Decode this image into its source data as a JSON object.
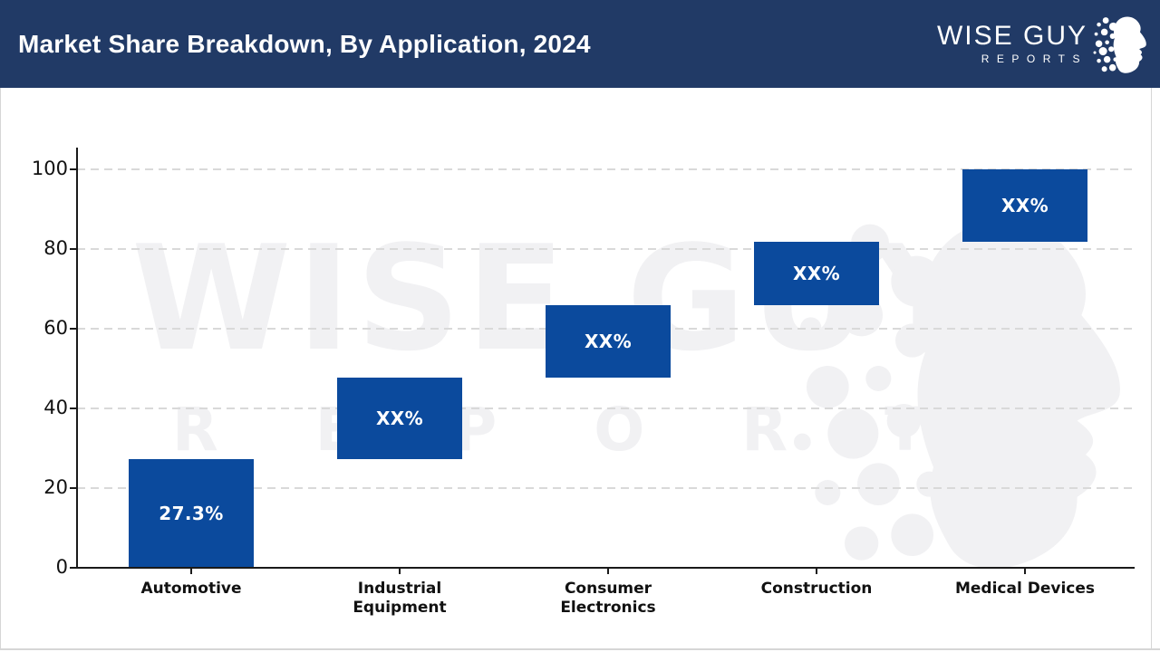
{
  "header": {
    "title": "Market Share Breakdown, By Application, 2024",
    "logo": {
      "line1": "WISE GUY",
      "line2": "REPORTS"
    }
  },
  "watermark": {
    "line1": "WISE GUY",
    "line2": "R E P O R T S"
  },
  "colors": {
    "header_bg": "#213A66",
    "bar": "#0B4A9D",
    "grid": "#D9D9D9",
    "axis": "#1A1A1A",
    "watermark": "#F1F1F3",
    "bar_label": "#FFFFFF",
    "title_text": "#FFFFFF"
  },
  "chart_data": {
    "type": "bar",
    "subtype": "waterfall-floating-bars",
    "title": "Market Share Breakdown, By Application, 2024",
    "categories": [
      "Automotive",
      "Industrial Equipment",
      "Consumer Electronics",
      "Construction",
      "Medical Devices"
    ],
    "category_lines": [
      [
        "Automotive"
      ],
      [
        "Industrial",
        "Equipment"
      ],
      [
        "Consumer",
        "Electronics"
      ],
      [
        "Construction"
      ],
      [
        "Medical Devices"
      ]
    ],
    "series": [
      {
        "name": "Market share (%)",
        "segments": [
          {
            "category": "Automotive",
            "from": 0,
            "to": 27.3
          },
          {
            "category": "Industrial Equipment",
            "from": 27.3,
            "to": 47.7
          },
          {
            "category": "Consumer Electronics",
            "from": 47.7,
            "to": 66.0
          },
          {
            "category": "Construction",
            "from": 66.0,
            "to": 81.8
          },
          {
            "category": "Medical Devices",
            "from": 81.8,
            "to": 100
          }
        ]
      }
    ],
    "bar_labels": [
      "27.3%",
      "XX%",
      "XX%",
      "XX%",
      "XX%"
    ],
    "xlabel": "",
    "ylabel": "",
    "ylim": [
      0,
      100
    ],
    "yticks": [
      0,
      20,
      40,
      60,
      80,
      100
    ],
    "grid": "horizontal-dashed",
    "legend_position": "none"
  }
}
